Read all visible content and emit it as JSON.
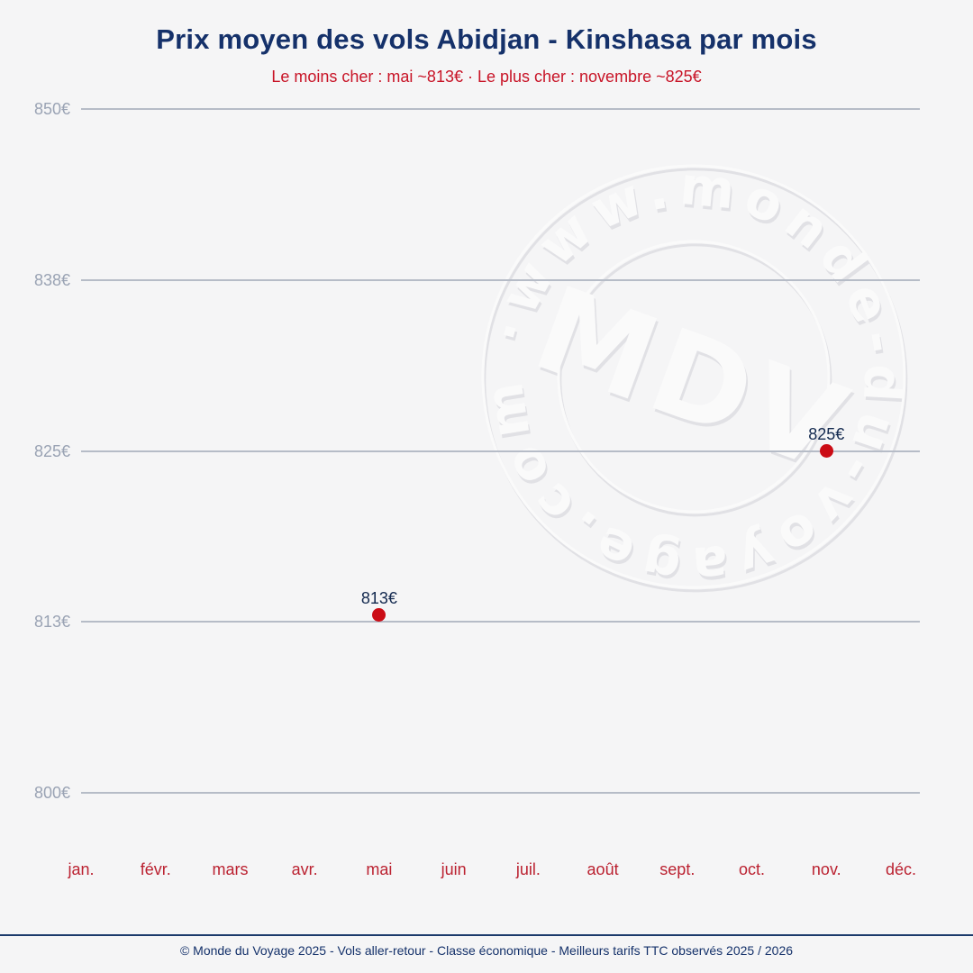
{
  "header": {
    "title": "Prix moyen des vols Abidjan - Kinshasa par mois",
    "subtitle": "Le moins cher : mai ~813€ · Le plus cher : novembre ~825€"
  },
  "chart_data": {
    "type": "scatter",
    "title": "Prix moyen des vols Abidjan - Kinshasa par mois",
    "categories": [
      "jan.",
      "févr.",
      "mars",
      "avr.",
      "mai",
      "juin",
      "juil.",
      "août",
      "sept.",
      "oct.",
      "nov.",
      "déc."
    ],
    "ylim": [
      800,
      850
    ],
    "y_ticks": [
      {
        "value": 850,
        "label": "850€"
      },
      {
        "value": 837.5,
        "label": "838€"
      },
      {
        "value": 825,
        "label": "825€"
      },
      {
        "value": 812.5,
        "label": "813€"
      },
      {
        "value": 800,
        "label": "800€"
      }
    ],
    "grid": true,
    "unit": "€",
    "points": [
      {
        "category": "mai",
        "month_index": 4,
        "value": 813,
        "label": "813€"
      },
      {
        "category": "nov.",
        "month_index": 10,
        "value": 825,
        "label": "825€"
      }
    ]
  },
  "watermark": {
    "ring_text": "www.monde-du-voyage.com ·",
    "center_text": "MDV"
  },
  "footer": {
    "text": "© Monde du Voyage 2025 - Vols aller-retour - Classe économique - Meilleurs tarifs TTC observés 2025 / 2026"
  },
  "colors": {
    "background": "#f5f5f6",
    "title": "#15316a",
    "subtitle": "#c81326",
    "axis_label": "#9aa3b4",
    "month_label": "#bb2231",
    "gridline": "#b6bcc7",
    "point": "#cb0c15",
    "point_label": "#13294f",
    "footer": "#14316a"
  }
}
